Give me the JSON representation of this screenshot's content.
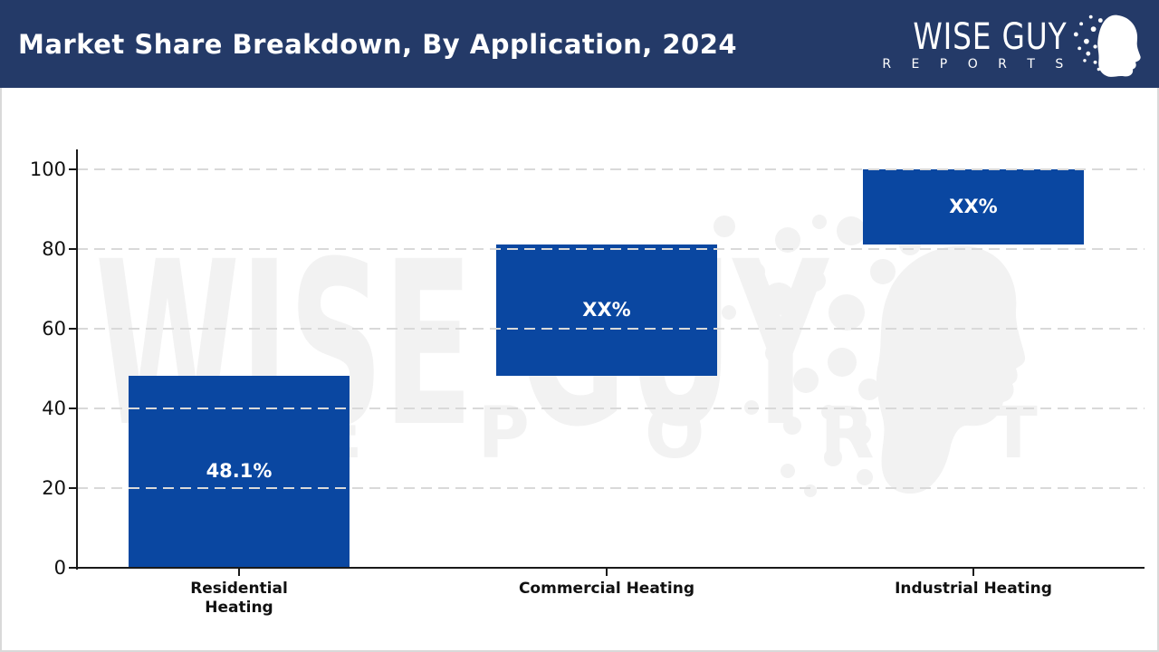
{
  "header": {
    "title": "Market Share Breakdown, By Application, 2024",
    "logo": {
      "line1": "WISE GUY",
      "line2": "R E P O R T S"
    }
  },
  "watermark": {
    "line1": "WISE GUY",
    "line2": "R E P O R T S"
  },
  "chart_data": {
    "type": "bar",
    "subtype": "waterfall-stacked-breakdown",
    "title": "Market Share Breakdown, By Application, 2024",
    "categories": [
      "Residential\nHeating",
      "Commercial Heating",
      "Industrial Heating"
    ],
    "segments": [
      {
        "category": "Residential Heating",
        "start": 0,
        "end": 48.1,
        "label": "48.1%"
      },
      {
        "category": "Commercial Heating",
        "start": 48.1,
        "end": 81.1,
        "label": "XX%"
      },
      {
        "category": "Industrial Heating",
        "start": 81.1,
        "end": 100,
        "label": "XX%"
      }
    ],
    "ylim": [
      0,
      100
    ],
    "yticks": [
      0,
      20,
      40,
      60,
      80,
      100
    ],
    "xlabel": "",
    "ylabel": "",
    "grid": "horizontal-dashed",
    "legend_position": "none",
    "bar_color": "#0a47a1",
    "bar_label_color": "#ffffff",
    "axis_color": "#1a1a1a",
    "gridline_color": "#d9d9d9",
    "header_color": "#243a68",
    "watermark_color": "#f2f2f2"
  }
}
